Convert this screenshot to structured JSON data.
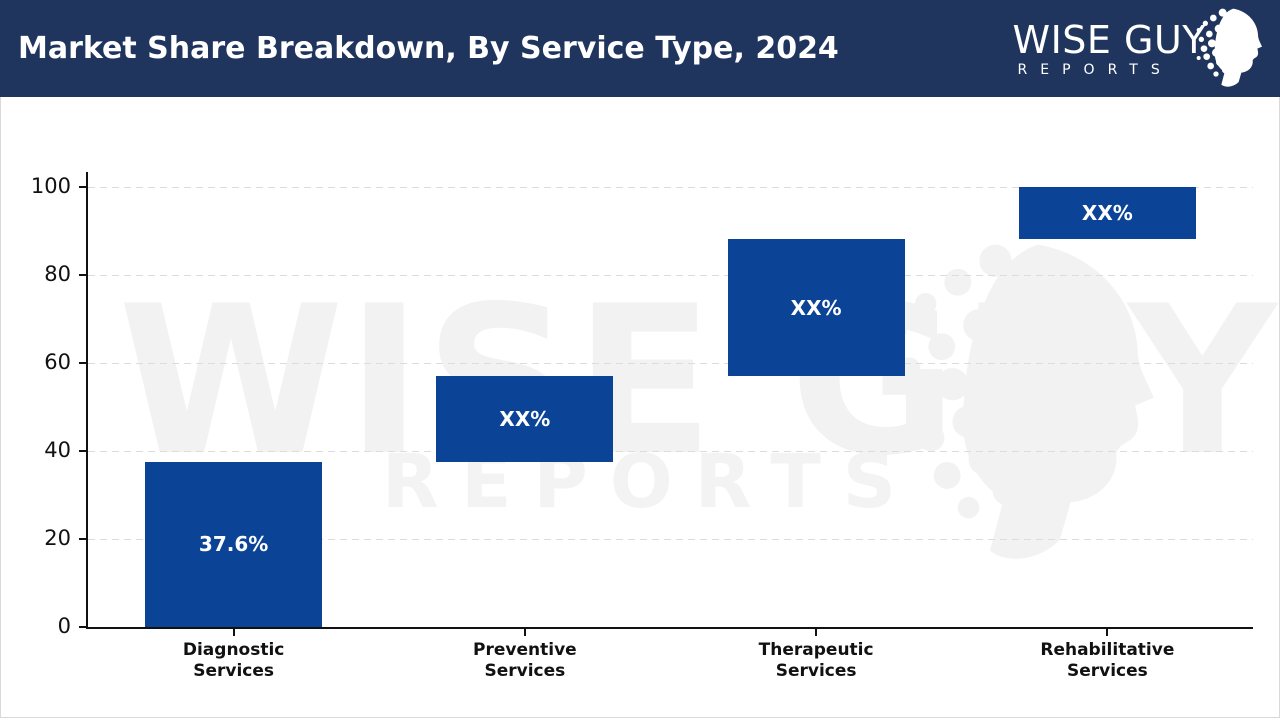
{
  "header": {
    "title": "Market Share Breakdown, By Service Type, 2024",
    "logo": {
      "name": "WISE GUY",
      "sub": "REPORTS"
    }
  },
  "watermark": {
    "line1": "WISE GUY",
    "line2": "REPORTS"
  },
  "chart_data": {
    "type": "bar",
    "subtype": "waterfall",
    "title": "Market Share Breakdown, By Service Type, 2024",
    "categories": [
      "Diagnostic Services",
      "Preventive Services",
      "Therapeutic Services",
      "Rehabilitative Services"
    ],
    "category_lines": [
      [
        "Diagnostic",
        "Services"
      ],
      [
        "Preventive",
        "Services"
      ],
      [
        "Therapeutic",
        "Services"
      ],
      [
        "Rehabilitative",
        "Services"
      ]
    ],
    "series": [
      {
        "name": "Market share (%)",
        "segments": [
          {
            "start": 0,
            "end": 37.6,
            "label": "37.6%"
          },
          {
            "start": 37.6,
            "end": 57,
            "label": "XX%"
          },
          {
            "start": 57,
            "end": 88.2,
            "label": "XX%"
          },
          {
            "start": 88.2,
            "end": 100,
            "label": "XX%"
          }
        ]
      }
    ],
    "ylim": [
      0,
      100
    ],
    "yticks": [
      0,
      20,
      40,
      60,
      80,
      100
    ],
    "xlabel": "",
    "ylabel": "",
    "grid": "horizontal-dashed",
    "legend": "none",
    "colors": {
      "bar": "#0b4397",
      "bar_label": "#ffffff",
      "grid": "#dcdcdc",
      "axis": "#111111",
      "header_bg": "#20355e",
      "header_text": "#ffffff",
      "watermark": "#f2f2f2"
    }
  }
}
